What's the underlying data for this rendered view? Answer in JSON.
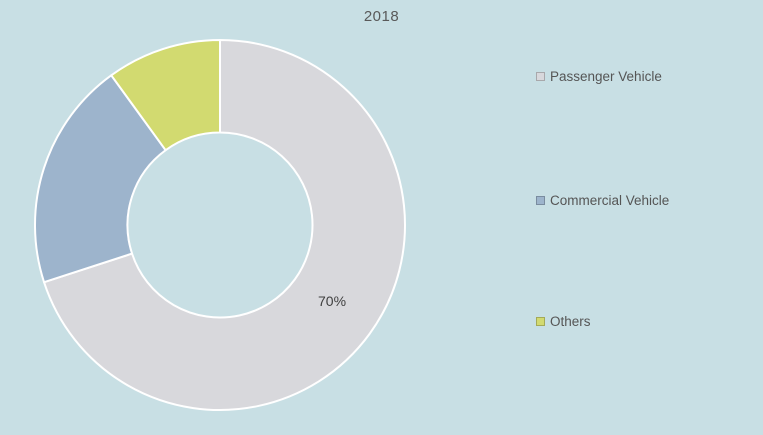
{
  "chart_data": {
    "type": "pie",
    "subtype": "donut",
    "title": "2018",
    "categories": [
      "Passenger Vehicle",
      "Commercial Vehicle",
      "Others"
    ],
    "values": [
      70,
      20,
      10
    ],
    "unit": "%",
    "colors": [
      "#d8d8dc",
      "#9db4cc",
      "#d2da70"
    ],
    "start_angle_deg": 0,
    "direction": "clockwise",
    "hole_ratio": 0.5,
    "legend_position": "right",
    "data_label": "70%"
  },
  "colors": {
    "background": "#c8dfe4",
    "slice_border": "#ffffff",
    "title_text": "#595959",
    "legend_text": "#555555",
    "label_text": "#3f3f3f"
  }
}
